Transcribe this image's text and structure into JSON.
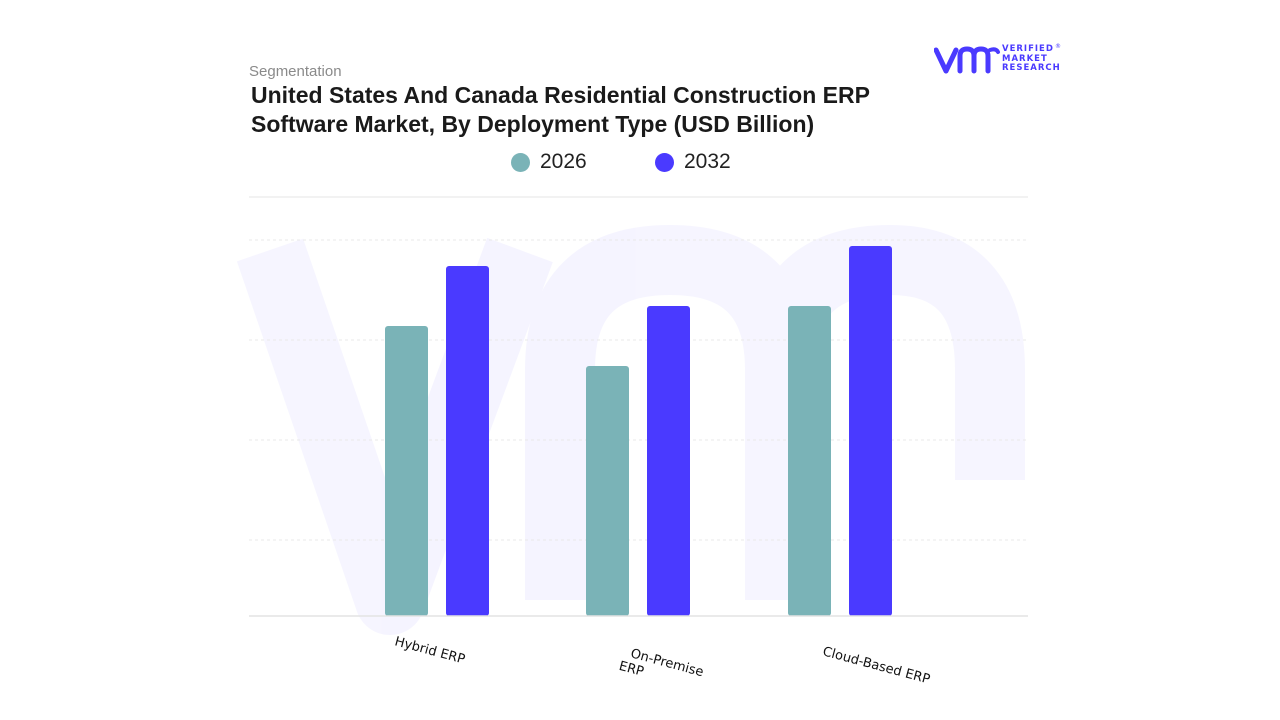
{
  "header": {
    "segment_label": "Segmentation",
    "title": "United States And Canada Residential Construction ERP Software Market, By Deployment Type (USD Billion)"
  },
  "brand": {
    "logo_name": "vmr-logo-icon",
    "line1": "VERIFIED",
    "line2": "MARKET",
    "line3": "RESEARCH",
    "registered": "®",
    "color": "#4a3aff"
  },
  "chart_data": {
    "type": "bar",
    "categories": [
      "Hybrid ERP",
      "On-Premise ERP",
      "Cloud-Based ERP"
    ],
    "series": [
      {
        "name": "2026",
        "values": [
          2.9,
          2.5,
          3.1
        ],
        "color": "#7ab3b7"
      },
      {
        "name": "2032",
        "values": [
          3.5,
          3.1,
          3.7
        ],
        "color": "#4a3aff"
      }
    ],
    "ylim": [
      0,
      4
    ],
    "grid": true,
    "legend_position": "top",
    "title": "United States And Canada Residential Construction ERP Software Market, By Deployment Type (USD Billion)"
  }
}
